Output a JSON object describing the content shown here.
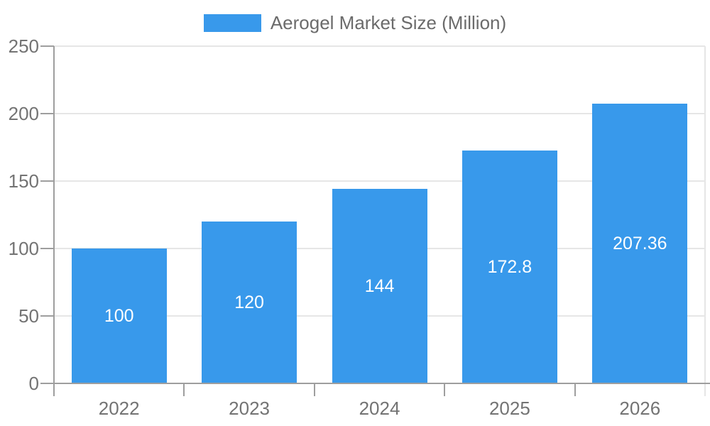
{
  "legend": {
    "label": "Aerogel Market Size (Million)"
  },
  "chart_data": {
    "type": "bar",
    "title": "Aerogel Market Size (Million)",
    "categories": [
      "2022",
      "2023",
      "2024",
      "2025",
      "2026"
    ],
    "series": [
      {
        "name": "Aerogel Market Size (Million)",
        "values": [
          100,
          120,
          144,
          172.8,
          207.36
        ]
      }
    ],
    "data_labels": [
      "100",
      "120",
      "144",
      "172.8",
      "207.36"
    ],
    "xlabel": "",
    "ylabel": "",
    "ylim": [
      0,
      250
    ],
    "yticks": [
      0,
      50,
      100,
      150,
      200,
      250
    ],
    "grid": true,
    "legend_position": "top",
    "colors": {
      "bar": "#3899EB",
      "axis": "#9E9E9E",
      "grid": "#E6E6E6",
      "tick_label": "#737373",
      "legend_label": "#6B6B6B",
      "value_label": "#FFFFFF",
      "background": "#FFFFFF"
    }
  }
}
